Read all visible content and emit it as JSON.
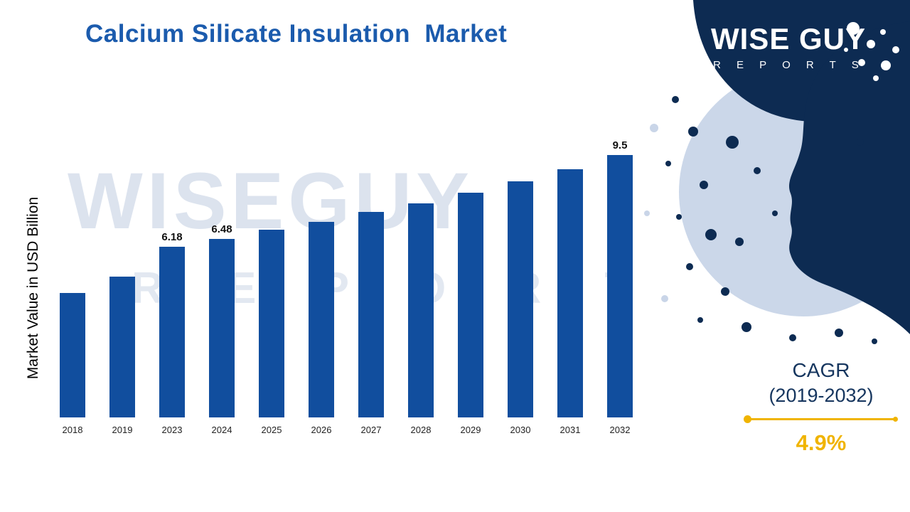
{
  "title": "Calcium Silicate Insulation  Market",
  "y_axis_label": "Market Value in USD Billion",
  "watermark": {
    "line1": "WISEGUY",
    "line2": "R E P O R T S"
  },
  "logo": {
    "name": "WISE GUY",
    "subtitle": "R E P O R T S"
  },
  "cagr": {
    "title": "CAGR",
    "range": "(2019-2032)",
    "value": "4.9%"
  },
  "colors": {
    "bar": "#114e9e",
    "title_blue": "#1b5bad",
    "navy": "#0d2b52",
    "accent_yellow": "#f0b400",
    "watermark_blue": "#c6d1e3"
  },
  "chart_data": {
    "type": "bar",
    "title": "Calcium Silicate Insulation Market",
    "xlabel": "",
    "ylabel": "Market Value in USD Billion",
    "ylim": [
      0,
      10
    ],
    "grid": false,
    "legend": null,
    "categories": [
      "2018",
      "2019",
      "2023",
      "2024",
      "2025",
      "2026",
      "2027",
      "2028",
      "2029",
      "2030",
      "2031",
      "2032"
    ],
    "values": [
      4.5,
      5.1,
      6.18,
      6.48,
      6.8,
      7.1,
      7.45,
      7.75,
      8.15,
      8.55,
      9.0,
      9.5
    ],
    "bar_labels": [
      "",
      "",
      "6.18",
      "6.48",
      "",
      "",
      "",
      "",
      "",
      "",
      "",
      "9.5"
    ]
  }
}
